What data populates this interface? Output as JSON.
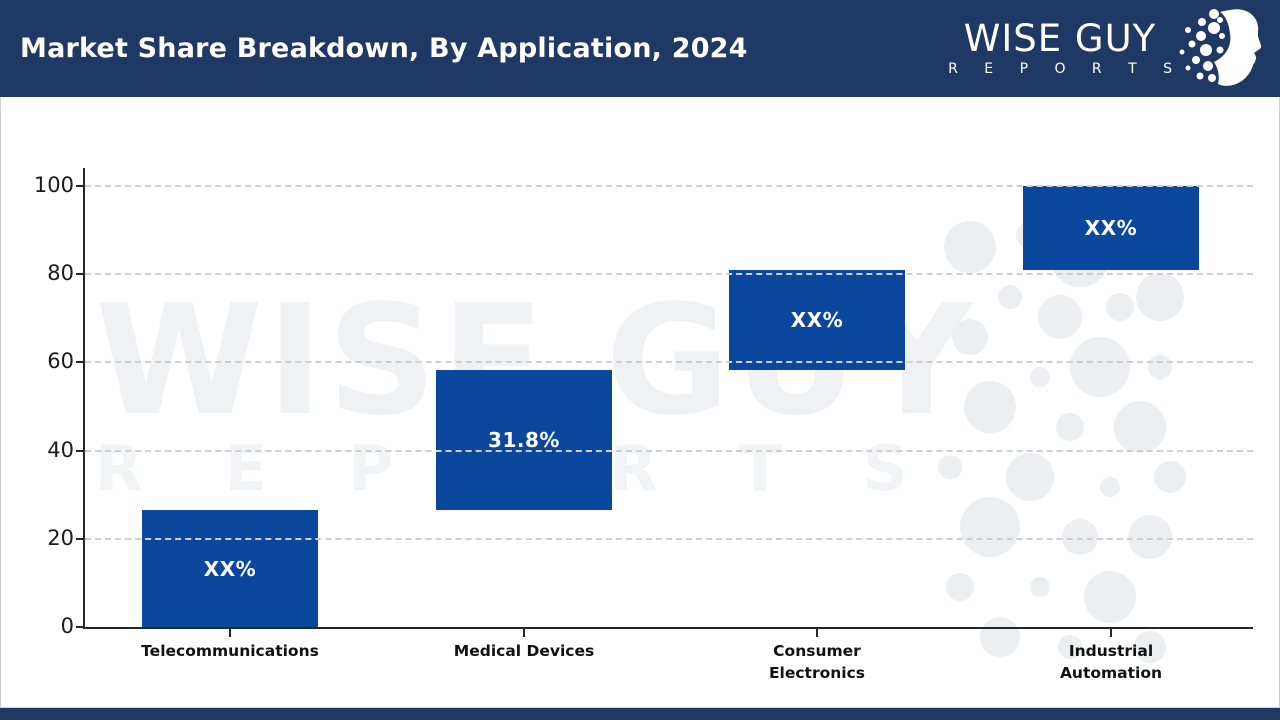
{
  "header": {
    "title": "Market Share Breakdown, By Application, 2024",
    "bg_color": "#1f3864",
    "logo": {
      "name": "WISE GUY",
      "subname": "R E P O R T S"
    }
  },
  "watermark": {
    "line1": "WISE GUY",
    "line2": "R E P O R T S"
  },
  "chart_data": {
    "type": "bar",
    "subtype": "waterfall-breakdown",
    "title": "Market Share Breakdown, By Application, 2024",
    "categories": [
      "Telecommunications",
      "Medical Devices",
      "Consumer Electronics",
      "Industrial Automation"
    ],
    "category_label_lines": [
      [
        "Telecommunications"
      ],
      [
        "Medical Devices"
      ],
      [
        "Consumer",
        "Electronics"
      ],
      [
        "Industrial",
        "Automation"
      ]
    ],
    "bars": [
      {
        "category": "Telecommunications",
        "start": 0,
        "end": 26.5,
        "height": 26.5,
        "label": "XX%"
      },
      {
        "category": "Medical Devices",
        "start": 26.5,
        "end": 58.3,
        "height": 31.8,
        "label": "31.8%"
      },
      {
        "category": "Consumer Electronics",
        "start": 58.3,
        "end": 81.0,
        "height": 22.7,
        "label": "XX%"
      },
      {
        "category": "Industrial Automation",
        "start": 81.0,
        "end": 100.0,
        "height": 19.0,
        "label": "XX%"
      }
    ],
    "ylim": [
      0,
      100
    ],
    "yticks": [
      0,
      20,
      40,
      60,
      80,
      100
    ],
    "grid": "horizontal-dashed",
    "gridlines_above_bars": true,
    "legend": null,
    "bar_color": "#0a479d",
    "bar_label_color": "#ffffff",
    "axis_color": "#262626",
    "gridline_color": "#cfcfcf"
  }
}
